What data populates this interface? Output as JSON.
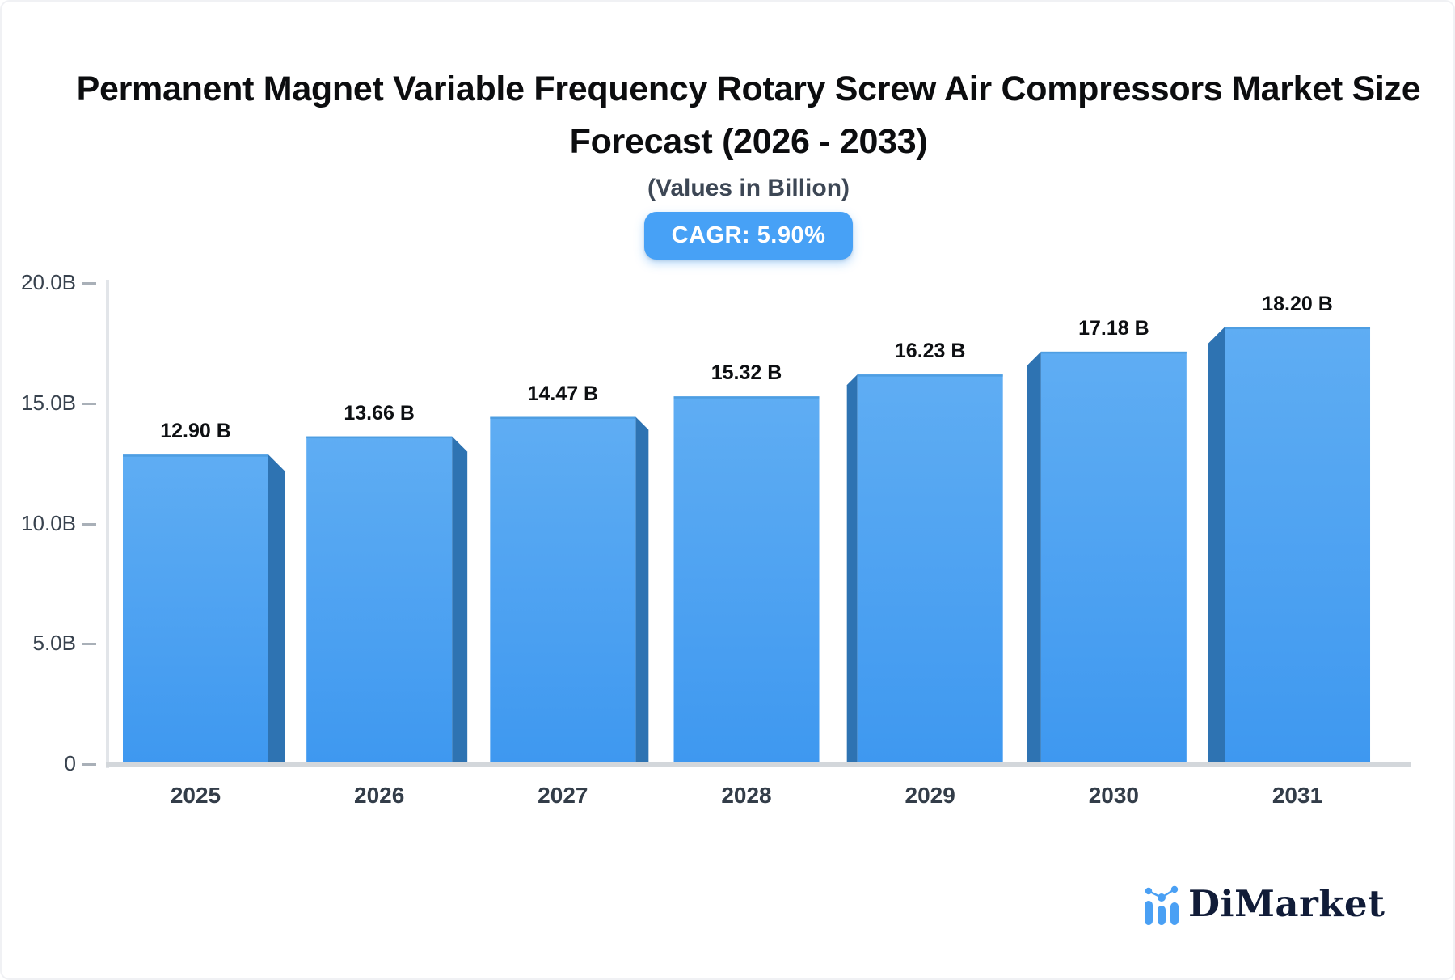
{
  "header": {
    "title_line1": "Permanent Magnet Variable Frequency Rotary Screw Air Compressors Market Size",
    "title_line2": "Forecast (2026 - 2033)",
    "subtitle": "(Values in Billion)",
    "cagr_label": "CAGR: 5.90%"
  },
  "chart_data": {
    "type": "bar",
    "title": "Permanent Magnet Variable Frequency Rotary Screw Air Compressors Market Size Forecast (2026 - 2033)",
    "subtitle": "(Values in Billion)",
    "cagr": "5.90%",
    "categories": [
      "2025",
      "2026",
      "2027",
      "2028",
      "2029",
      "2030",
      "2031"
    ],
    "values": [
      12.9,
      13.66,
      14.47,
      15.32,
      16.23,
      17.18,
      18.2
    ],
    "bar_labels": [
      "12.90 B",
      "13.66 B",
      "14.47 B",
      "15.32 B",
      "16.23 B",
      "17.18 B",
      "18.20 B"
    ],
    "xlabel": "",
    "ylabel": "",
    "ylim": [
      0,
      20
    ],
    "yticks": [
      {
        "value": 0,
        "label": "0"
      },
      {
        "value": 5,
        "label": "5.0B"
      },
      {
        "value": 10,
        "label": "10.0B"
      },
      {
        "value": 15,
        "label": "15.0B"
      },
      {
        "value": 20,
        "label": "20.0B"
      }
    ],
    "grid": false,
    "legend": false,
    "colors": {
      "bar_top": "#5fadf3",
      "bar_bottom": "#3e98f0",
      "bar_edge": "#4e9ee2",
      "bar_side": "#2e73b2",
      "badge": "#47a1f6"
    }
  },
  "brand": {
    "name": "DiMarket",
    "icon": "bar-chart-logo-icon",
    "color_navy": "#111c38",
    "color_blue": "#4aa0f4"
  }
}
